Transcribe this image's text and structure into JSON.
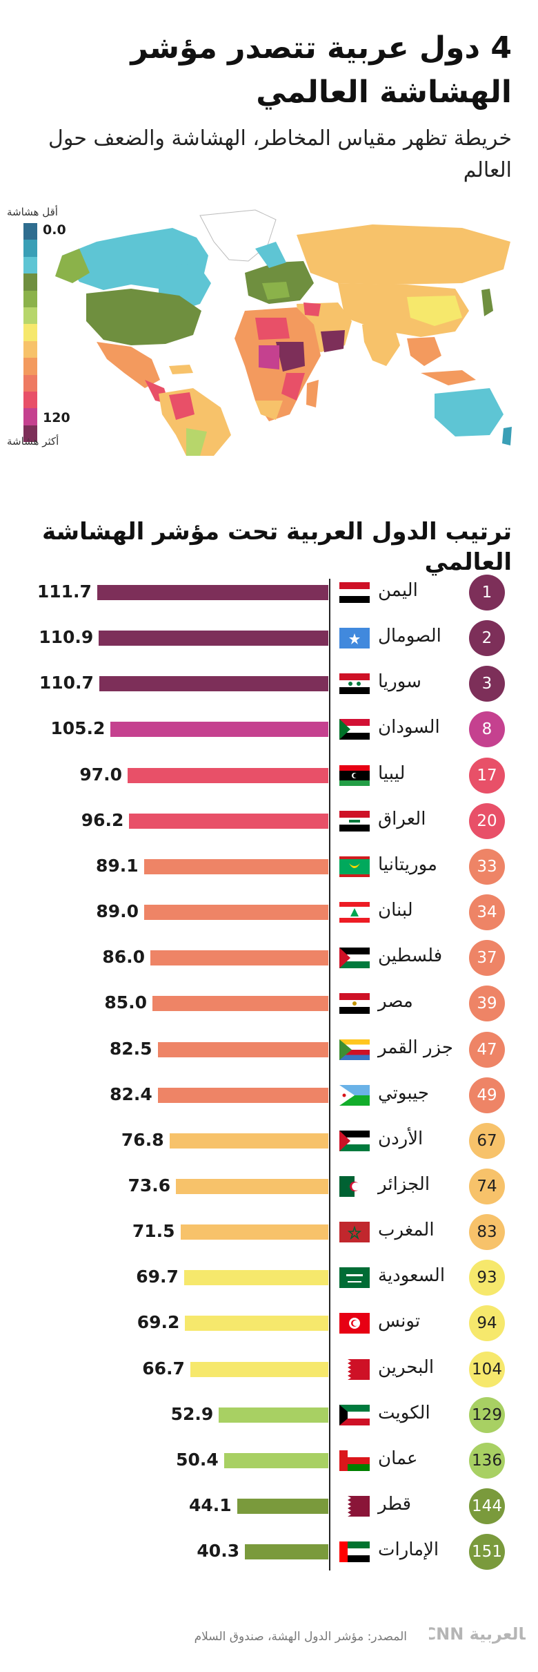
{
  "header": {
    "title": "4 دول عربية تتصدر مؤشر الهشاشة العالمي",
    "subtitle": "خريطة تظهر مقياس المخاطر، الهشاشة والضعف حول العالم"
  },
  "map_legend": {
    "top_label": "أقل هشاشة",
    "bottom_label": "أكثر هشاشة",
    "min_value": "0.0",
    "max_value": "120",
    "scale_colors": [
      "#2f6d8f",
      "#3a9fb6",
      "#5ec5d4",
      "#6f8f3f",
      "#8bb24a",
      "#b7d66b",
      "#f6e86c",
      "#f7c26a",
      "#f39a5e",
      "#ee7a62",
      "#e85068",
      "#c5418f",
      "#7d2f59"
    ]
  },
  "ranking_title": "ترتيب الدول العربية تحت مؤشر الهشاشة العالمي",
  "chart_data": {
    "type": "bar",
    "orientation": "horizontal",
    "categories": [
      "اليمن",
      "الصومال",
      "سوريا",
      "السودان",
      "ليبيا",
      "العراق",
      "موريتانيا",
      "لبنان",
      "فلسطين",
      "مصر",
      "جزر القمر",
      "جيبوتي",
      "الأردن",
      "الجزائر",
      "المغرب",
      "السعودية",
      "تونس",
      "البحرين",
      "الكويت",
      "عمان",
      "قطر",
      "الإمارات"
    ],
    "values": [
      111.7,
      110.9,
      110.7,
      105.2,
      97.0,
      96.2,
      89.1,
      89.0,
      86.0,
      85.0,
      82.5,
      82.4,
      76.8,
      73.6,
      71.5,
      69.7,
      69.2,
      66.7,
      52.9,
      50.4,
      44.1,
      40.3
    ],
    "value_labels": [
      "111.7",
      "110.9",
      "110.7",
      "105.2",
      "97.0",
      "96.2",
      "89.1",
      "89.0",
      "86.0",
      "85.0",
      "82.5",
      "82.4",
      "76.8",
      "73.6",
      "71.5",
      "69.7",
      "69.2",
      "66.7",
      "52.9",
      "50.4",
      "44.1",
      "40.3"
    ],
    "ranks": [
      "1",
      "2",
      "3",
      "8",
      "17",
      "20",
      "33",
      "34",
      "37",
      "39",
      "47",
      "49",
      "67",
      "74",
      "83",
      "93",
      "94",
      "104",
      "129",
      "136",
      "144",
      "151"
    ],
    "colors": [
      "#7d2f59",
      "#7d2f59",
      "#7d2f59",
      "#c5418f",
      "#e85068",
      "#e85068",
      "#ee8466",
      "#ee8466",
      "#ee8466",
      "#ee8466",
      "#ee8466",
      "#ee8466",
      "#f7c26a",
      "#f7c26a",
      "#f7c26a",
      "#f6e86c",
      "#f6e86c",
      "#f6e86c",
      "#a8d063",
      "#a8d063",
      "#7a9a3c",
      "#7a9a3c"
    ],
    "flags": [
      "yemen-flag",
      "somalia-flag",
      "syria-flag",
      "sudan-flag",
      "libya-flag",
      "iraq-flag",
      "mauritania-flag",
      "lebanon-flag",
      "palestine-flag",
      "egypt-flag",
      "comoros-flag",
      "djibouti-flag",
      "jordan-flag",
      "algeria-flag",
      "morocco-flag",
      "saudi-flag",
      "tunisia-flag",
      "bahrain-flag",
      "kuwait-flag",
      "oman-flag",
      "qatar-flag",
      "uae-flag"
    ],
    "xlim": [
      0,
      120
    ]
  },
  "footer": {
    "source": "المصدر: مؤشر الدول الهشة، صندوق السلام",
    "logo_text": "CNN بالعربية"
  }
}
